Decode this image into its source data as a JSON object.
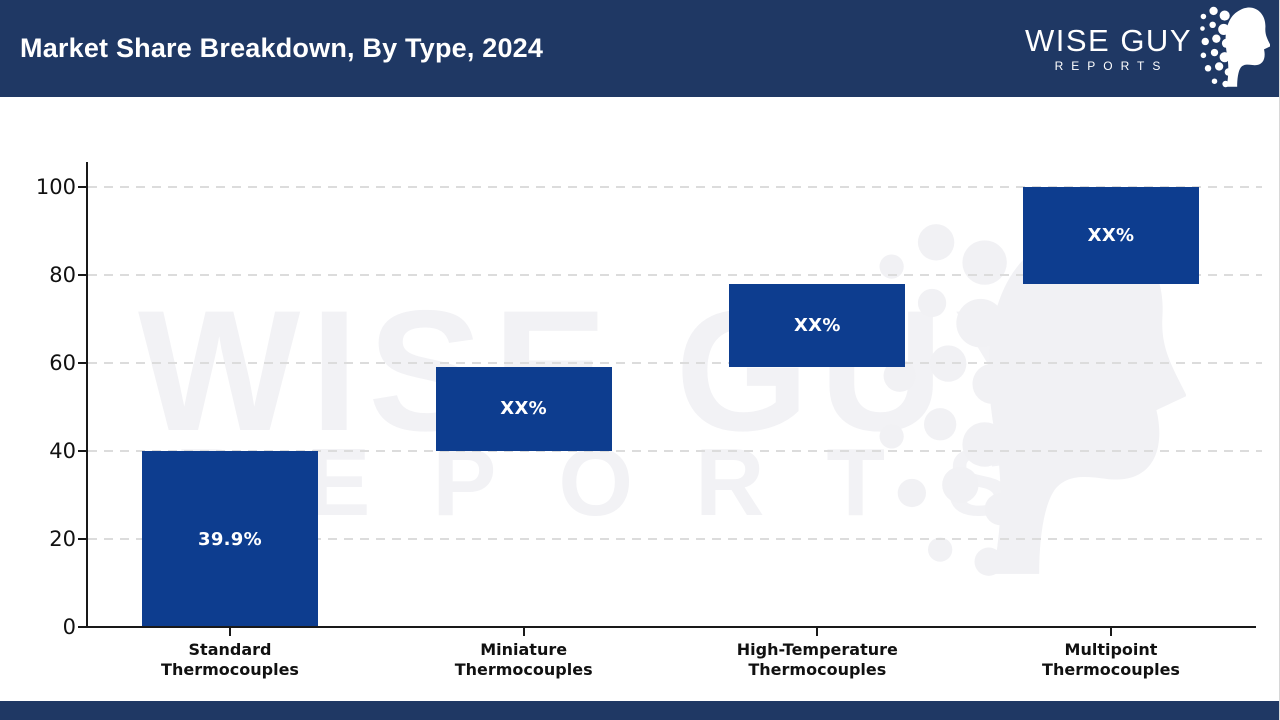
{
  "header": {
    "title": "Market Share Breakdown, By Type, 2024",
    "bg_color": "#1F3864",
    "logo": {
      "name": "WISE GUY",
      "sub": "REPORTS"
    }
  },
  "watermark": {
    "line1": "WISE GUY",
    "line2": "REPORTS"
  },
  "footer": {
    "bg_color": "#1F3864"
  },
  "chart_data": {
    "type": "bar",
    "subtype": "waterfall",
    "title": "Market Share Breakdown, By Type, 2024",
    "categories": [
      [
        "Standard",
        "Thermocouples"
      ],
      [
        "Miniature",
        "Thermocouples"
      ],
      [
        "High-Temperature",
        "Thermocouples"
      ],
      [
        "Multipoint",
        "Thermocouples"
      ]
    ],
    "bars": [
      {
        "start": 0,
        "end": 39.9,
        "value_label": "39.9%"
      },
      {
        "start": 39.9,
        "end": 59.2,
        "value_label": "XX%"
      },
      {
        "start": 59.2,
        "end": 78.0,
        "value_label": "XX%"
      },
      {
        "start": 78.0,
        "end": 100.0,
        "value_label": "XX%"
      }
    ],
    "yticks": [
      0,
      20,
      40,
      60,
      80,
      100
    ],
    "ylim": [
      0,
      105
    ],
    "xlabel": "",
    "ylabel": "",
    "legend": "none",
    "grid": "horizontal-dashed",
    "bar_color": "#0D3D8F",
    "grid_color": "#DCDCDC",
    "axis_color": "#191919"
  }
}
